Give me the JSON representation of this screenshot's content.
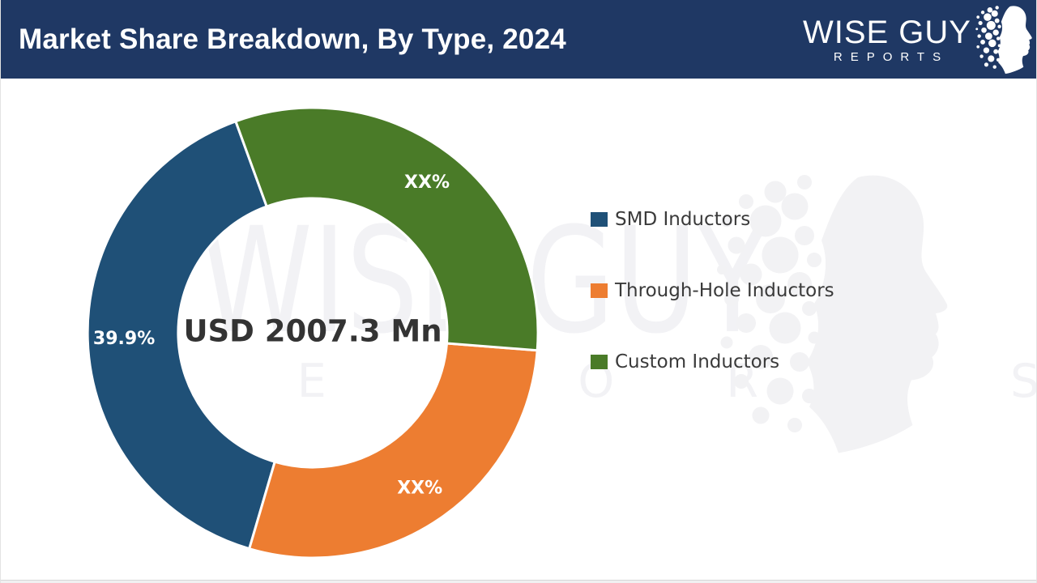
{
  "header": {
    "title": "Market Share Breakdown, By Type, 2024",
    "background_color": "#1f3864",
    "logo": {
      "line1": "WISE GUY",
      "line2": "REPORTS"
    }
  },
  "watermark": {
    "line1": "WISE GUY",
    "line2": "R E P O R T S",
    "color": "#f2f2f5"
  },
  "chart_data": {
    "type": "pie",
    "hole": 0.6,
    "center_label": "USD 2007.3 Mn",
    "start_angle_deg": 110,
    "direction": "counterclockwise",
    "legend_position": "right",
    "background": "#ffffff",
    "segments": [
      {
        "name": "SMD Inductors",
        "value": 39.9,
        "label": "39.9%",
        "color": "#1f5077"
      },
      {
        "name": "Through-Hole Inductors",
        "value": 28.3,
        "label": "XX%",
        "color": "#ed7d31"
      },
      {
        "name": "Custom Inductors",
        "value": 31.8,
        "label": "XX%",
        "color": "#4a7b28"
      }
    ]
  }
}
